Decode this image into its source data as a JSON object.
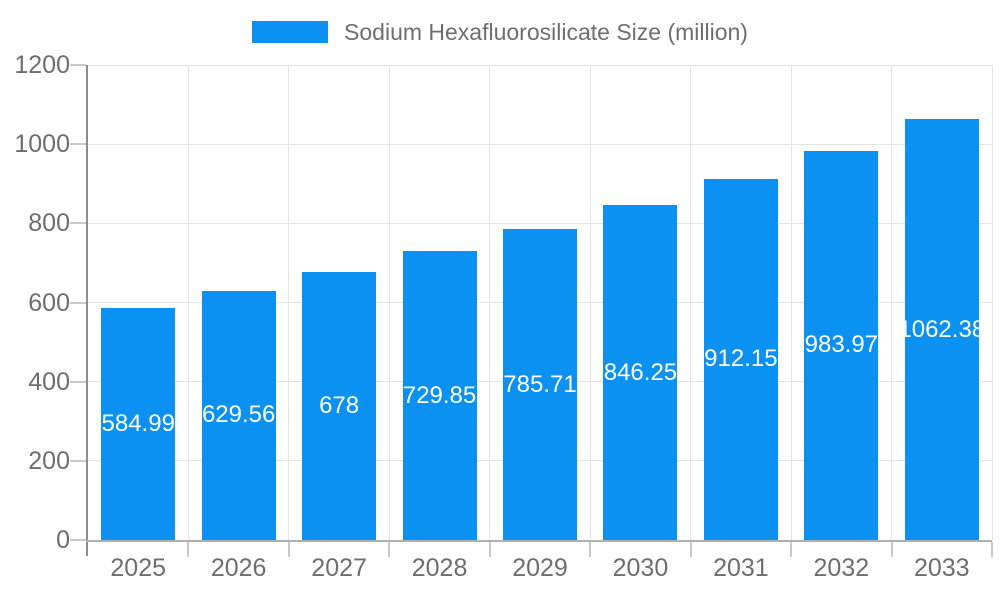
{
  "chart_data": {
    "type": "bar",
    "title": "Sodium Hexafluorosilicate Size (million)",
    "legend": {
      "position": "top-center",
      "entries": [
        "Sodium Hexafluorosilicate Size (million)"
      ]
    },
    "categories": [
      "2025",
      "2026",
      "2027",
      "2028",
      "2029",
      "2030",
      "2031",
      "2032",
      "2033"
    ],
    "series": [
      {
        "name": "Sodium Hexafluorosilicate Size (million)",
        "values": [
          584.99,
          629.56,
          678,
          729.85,
          785.71,
          846.25,
          912.15,
          983.97,
          1062.38
        ]
      }
    ],
    "data_labels": [
      "584.99",
      "629.56",
      "678",
      "729.85",
      "785.71",
      "846.25",
      "912.15",
      "983.97",
      "1062.38"
    ],
    "xlabel": "",
    "ylabel": "",
    "ylim": [
      0,
      1200
    ],
    "yticks": [
      0,
      200,
      400,
      600,
      800,
      1000,
      1200
    ],
    "grid": {
      "horizontal": true,
      "vertical": true
    },
    "colors": {
      "bar": "#0a91f2",
      "bar_label": "#ffffff",
      "grid": "#e4e4e4",
      "tick": "#c9c9c9",
      "axis_y": "#8d8d8d",
      "axis_x": "#b0b0b0",
      "text": "#6e6e6e",
      "background": "#ffffff"
    }
  }
}
